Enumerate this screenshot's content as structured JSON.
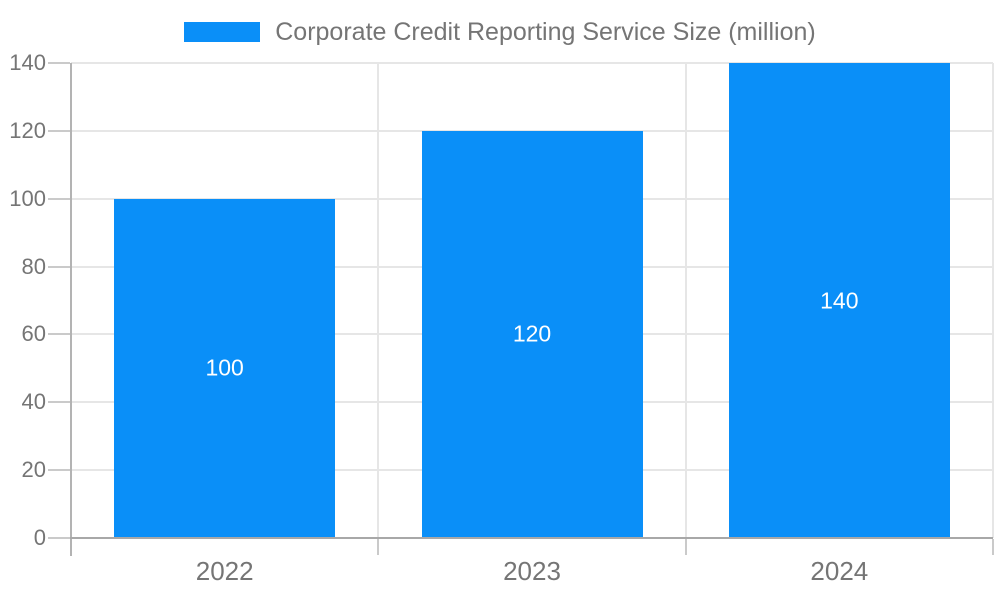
{
  "chart_data": {
    "type": "bar",
    "title": "Corporate Credit Reporting Service Size (million)",
    "categories": [
      "2022",
      "2023",
      "2024"
    ],
    "values": [
      100,
      120,
      140
    ],
    "value_labels": [
      "100",
      "120",
      "140"
    ],
    "ytick_labels": [
      "0",
      "20",
      "40",
      "60",
      "80",
      "100",
      "120",
      "140"
    ],
    "yticks": [
      0,
      20,
      40,
      60,
      80,
      100,
      120,
      140
    ],
    "ylim": [
      0,
      140
    ],
    "xlabel": "",
    "ylabel": "",
    "grid": "on",
    "legend_position": "top",
    "colors": {
      "bar": "#0a8ff8",
      "bar_value_text": "#ffffff",
      "axis_text": "#757575",
      "gridline": "#e6e6e6",
      "axis_line": "#a8a8a8",
      "tick": "#cacaca"
    }
  }
}
